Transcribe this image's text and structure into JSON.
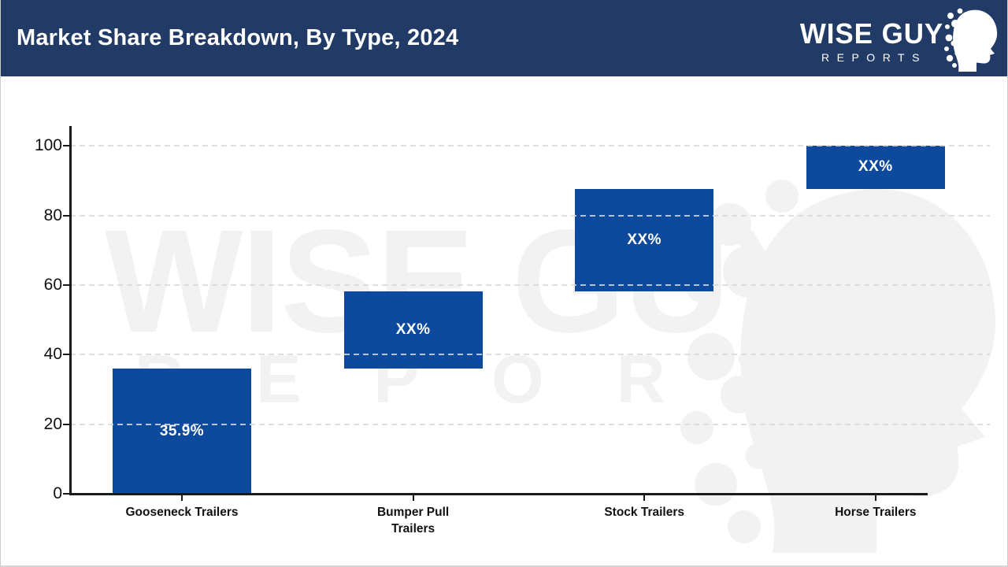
{
  "page": {
    "background": "#ffffff",
    "border_color": "#cccccc"
  },
  "header": {
    "title": "Market Share Breakdown, By Type, 2024",
    "background_color": "#213A66",
    "text_color": "#ffffff",
    "logo": {
      "line1": "WISE GUY",
      "line2": "REPORTS",
      "face_icon": "dotted-head-profile"
    }
  },
  "watermark": {
    "line1": "WISE GUY",
    "line2": "REPORTS",
    "color": "#f2f2f2"
  },
  "chart_data": {
    "type": "bar",
    "subtype": "floating-waterfall",
    "title": "Market Share Breakdown, By Type, 2024",
    "categories": [
      {
        "lines": [
          "Gooseneck Trailers"
        ]
      },
      {
        "lines": [
          "Bumper Pull",
          "Trailers"
        ]
      },
      {
        "lines": [
          "Stock Trailers"
        ]
      },
      {
        "lines": [
          "Horse Trailers"
        ]
      }
    ],
    "bars": [
      {
        "category": "Gooseneck Trailers",
        "label": "35.9%",
        "start": 0,
        "end": 35.9
      },
      {
        "category": "Bumper Pull Trailers",
        "label": "XX%",
        "start": 35.9,
        "end": 58.2
      },
      {
        "category": "Stock Trailers",
        "label": "XX%",
        "start": 58.2,
        "end": 87.5
      },
      {
        "category": "Horse Trailers",
        "label": "XX%",
        "start": 87.7,
        "end": 100
      }
    ],
    "y_axis": {
      "ticks": [
        0,
        20,
        40,
        60,
        80,
        100
      ],
      "range": [
        0,
        106
      ]
    },
    "x_label": "",
    "y_label": "",
    "legend": "none",
    "grid": "horizontal-dashed",
    "colors": {
      "bar": "#0D4A9E",
      "grid": "#d9d9d9",
      "axis": "#1a1a1a",
      "tick_label": "#111111",
      "bar_label": "#ffffff"
    }
  }
}
